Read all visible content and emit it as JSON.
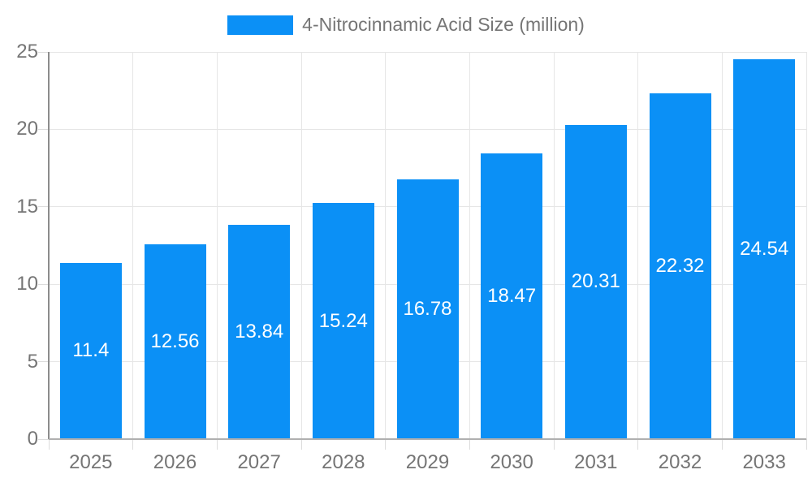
{
  "chart_data": {
    "type": "bar",
    "title": "4-Nitrocinnamic Acid Size (million)",
    "legend_entries": [
      "4-Nitrocinnamic Acid Size (million)"
    ],
    "legend_position": "top-center",
    "categories": [
      "2025",
      "2026",
      "2027",
      "2028",
      "2029",
      "2030",
      "2031",
      "2032",
      "2033"
    ],
    "values": [
      11.4,
      12.56,
      13.84,
      15.24,
      16.78,
      18.47,
      20.31,
      22.32,
      24.54
    ],
    "value_labels_position": "inside-center",
    "xlabel": "",
    "ylabel": "",
    "ylim": [
      0,
      25
    ],
    "yticks": [
      0,
      5,
      10,
      15,
      20,
      25
    ],
    "grid": "horizontal and vertical light gray lines",
    "colors": {
      "bar": "#0b90f6",
      "bar_value_text": "#ffffff",
      "axis_text": "#757575",
      "legend_text": "#757575",
      "gridline": "#e6e6e6",
      "tick_mark": "#dcdcdc",
      "y_axis_line": "#8c8c8c",
      "x_axis_line": "#b0b0b0",
      "background": "#ffffff"
    }
  }
}
